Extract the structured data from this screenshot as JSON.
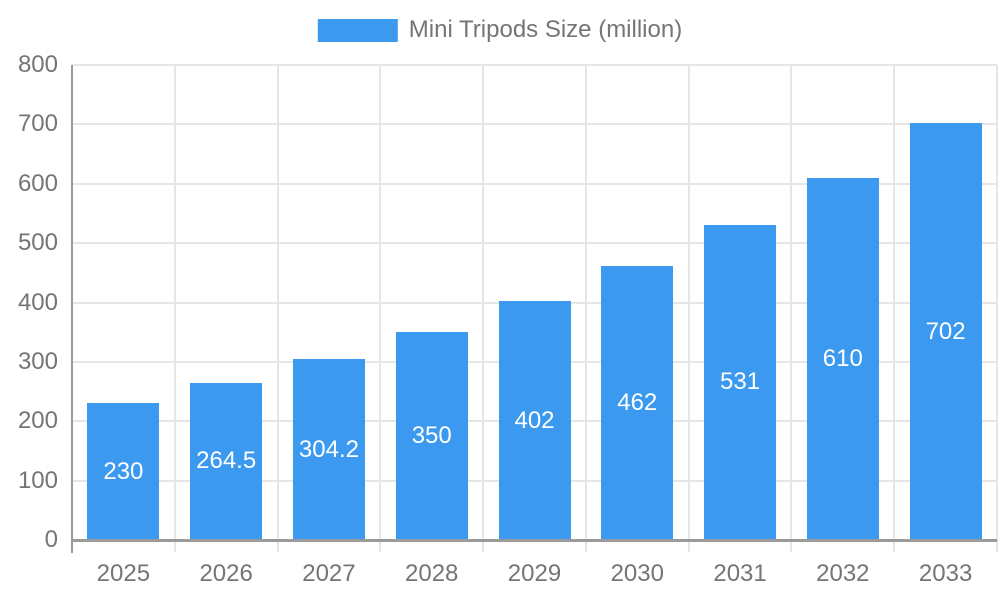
{
  "legend": {
    "label": "Mini Tripods Size (million)"
  },
  "colors": {
    "bar": "#3B99F0",
    "grid": "#E6E6E6",
    "axis": "#9A9A9A",
    "axis_text": "#757575",
    "bar_label_text": "#FFFFFF",
    "background": "#FFFFFF"
  },
  "chart_data": {
    "type": "bar",
    "title": "Mini Tripods Size (million)",
    "series_name": "Mini Tripods Size (million)",
    "categories": [
      "2025",
      "2026",
      "2027",
      "2028",
      "2029",
      "2030",
      "2031",
      "2032",
      "2033"
    ],
    "values": [
      230,
      264.5,
      304.2,
      350,
      402,
      462,
      531,
      610,
      702
    ],
    "bar_labels": [
      "230",
      "264.5",
      "304.2",
      "350",
      "402",
      "462",
      "531",
      "610",
      "702"
    ],
    "xlabel": "",
    "ylabel": "",
    "ylim": [
      0,
      800
    ],
    "yticks": [
      0,
      100,
      200,
      300,
      400,
      500,
      600,
      700,
      800
    ],
    "grid": true,
    "legend_position": "top-center"
  }
}
